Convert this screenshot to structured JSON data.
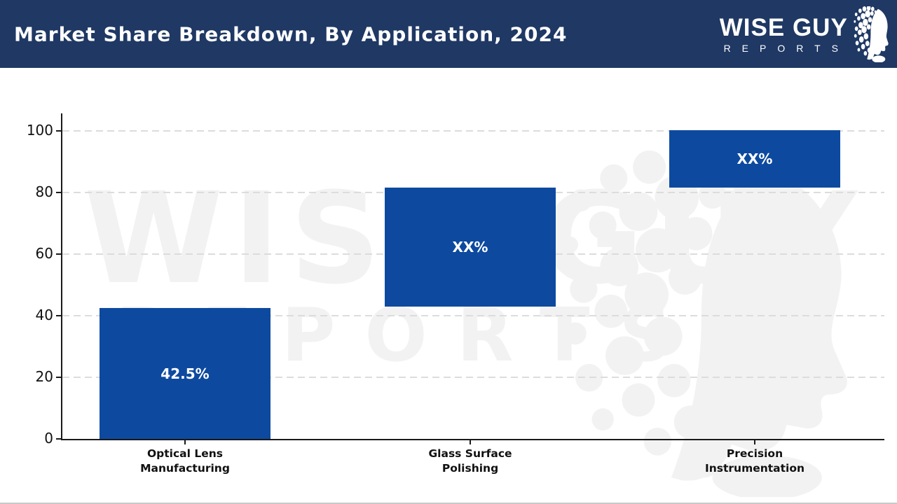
{
  "header": {
    "title": "Market Share Breakdown, By Application, 2024",
    "logo": {
      "wordmark": "WISE GUY",
      "subtext": "REPORTS"
    }
  },
  "watermark": {
    "wordmark": "WISE GUY",
    "subtext": "REPORTS"
  },
  "chart_data": {
    "type": "bar",
    "subtype": "stacked-waterfall",
    "title": "Market Share Breakdown, By Application, 2024",
    "categories": [
      {
        "line1": "Optical Lens",
        "line2": "Manufacturing"
      },
      {
        "line1": "Glass Surface",
        "line2": "Polishing"
      },
      {
        "line1": "Precision",
        "line2": "Instrumentation"
      }
    ],
    "series": [
      {
        "category": "Optical Lens Manufacturing",
        "start": 0,
        "end": 42.5,
        "label": "42.5%"
      },
      {
        "category": "Glass Surface Polishing",
        "start": 43,
        "end": 81.6,
        "label": "XX%"
      },
      {
        "category": "Precision Instrumentation",
        "start": 81.7,
        "end": 100.2,
        "label": "XX%"
      }
    ],
    "yticks": [
      0,
      20,
      40,
      60,
      80,
      100
    ],
    "ylim": [
      0,
      100
    ],
    "xlabel": "",
    "ylabel": "",
    "grid": {
      "horizontal": true,
      "style": "dashed",
      "color": "#dcdcdc"
    },
    "legend": "none",
    "colors": {
      "bar": "#0d4a9f",
      "bar_label": "#ffffff",
      "axis": "#1a1a1a",
      "header_bg": "#1f3864",
      "watermark": "#f2f2f2"
    }
  }
}
